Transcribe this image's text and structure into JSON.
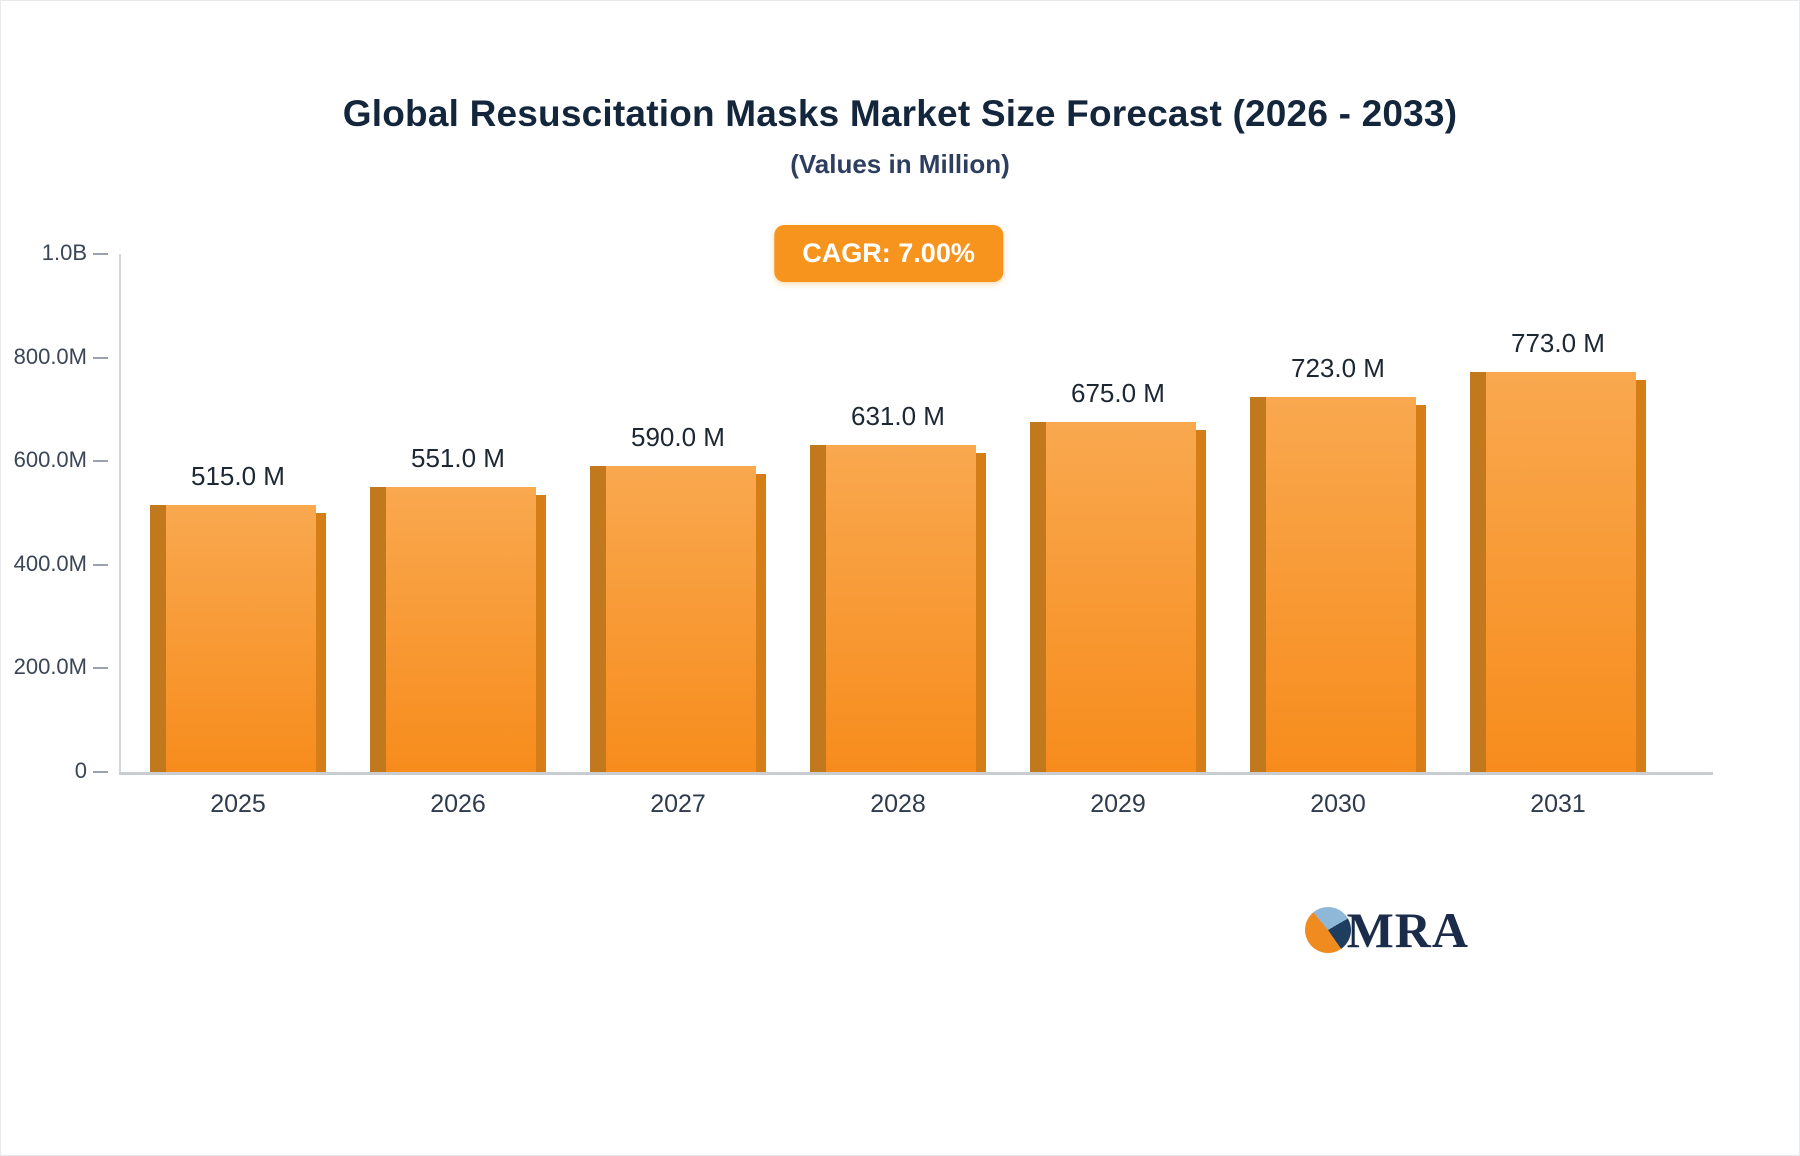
{
  "title": "Global Resuscitation Masks Market Size Forecast (2026 - 2033)",
  "subtitle": "(Values in Million)",
  "badge_label": "CAGR: 7.00%",
  "logo": {
    "text": "MRA"
  },
  "colors": {
    "badge": "#F7941E",
    "bar_top": "#F9A84F",
    "bar_bottom": "#F78C1C",
    "bar_side": "#C2791D",
    "bar_sliver": "#D57D16",
    "title_text": "#14263C",
    "axis_text": "#3A4656",
    "logo_orange": "#EF8B1F",
    "logo_lightblue": "#8FB8D8",
    "logo_navy": "#1F3D5F"
  },
  "chart_data": {
    "type": "bar",
    "title": "Global Resuscitation Masks Market Size Forecast (2026 - 2033)",
    "subtitle": "(Values in Million)",
    "annotation": "CAGR: 7.00%",
    "categories": [
      "2025",
      "2026",
      "2027",
      "2028",
      "2029",
      "2030",
      "2031"
    ],
    "values": [
      515,
      551,
      590,
      631,
      675,
      723,
      773
    ],
    "value_labels": [
      "515.0 M",
      "551.0 M",
      "590.0 M",
      "631.0 M",
      "675.0 M",
      "723.0 M",
      "773.0 M"
    ],
    "unit": "Million",
    "xlabel": "",
    "ylabel": "",
    "ylim": [
      0,
      1000
    ],
    "yticks": [
      {
        "label": "1.0B",
        "value": 1000
      },
      {
        "label": "800.0M",
        "value": 800
      },
      {
        "label": "600.0M",
        "value": 600
      },
      {
        "label": "400.0M",
        "value": 400
      },
      {
        "label": "200.0M",
        "value": 200
      },
      {
        "label": "0",
        "value": 0
      }
    ],
    "grid": false,
    "legend": false
  }
}
